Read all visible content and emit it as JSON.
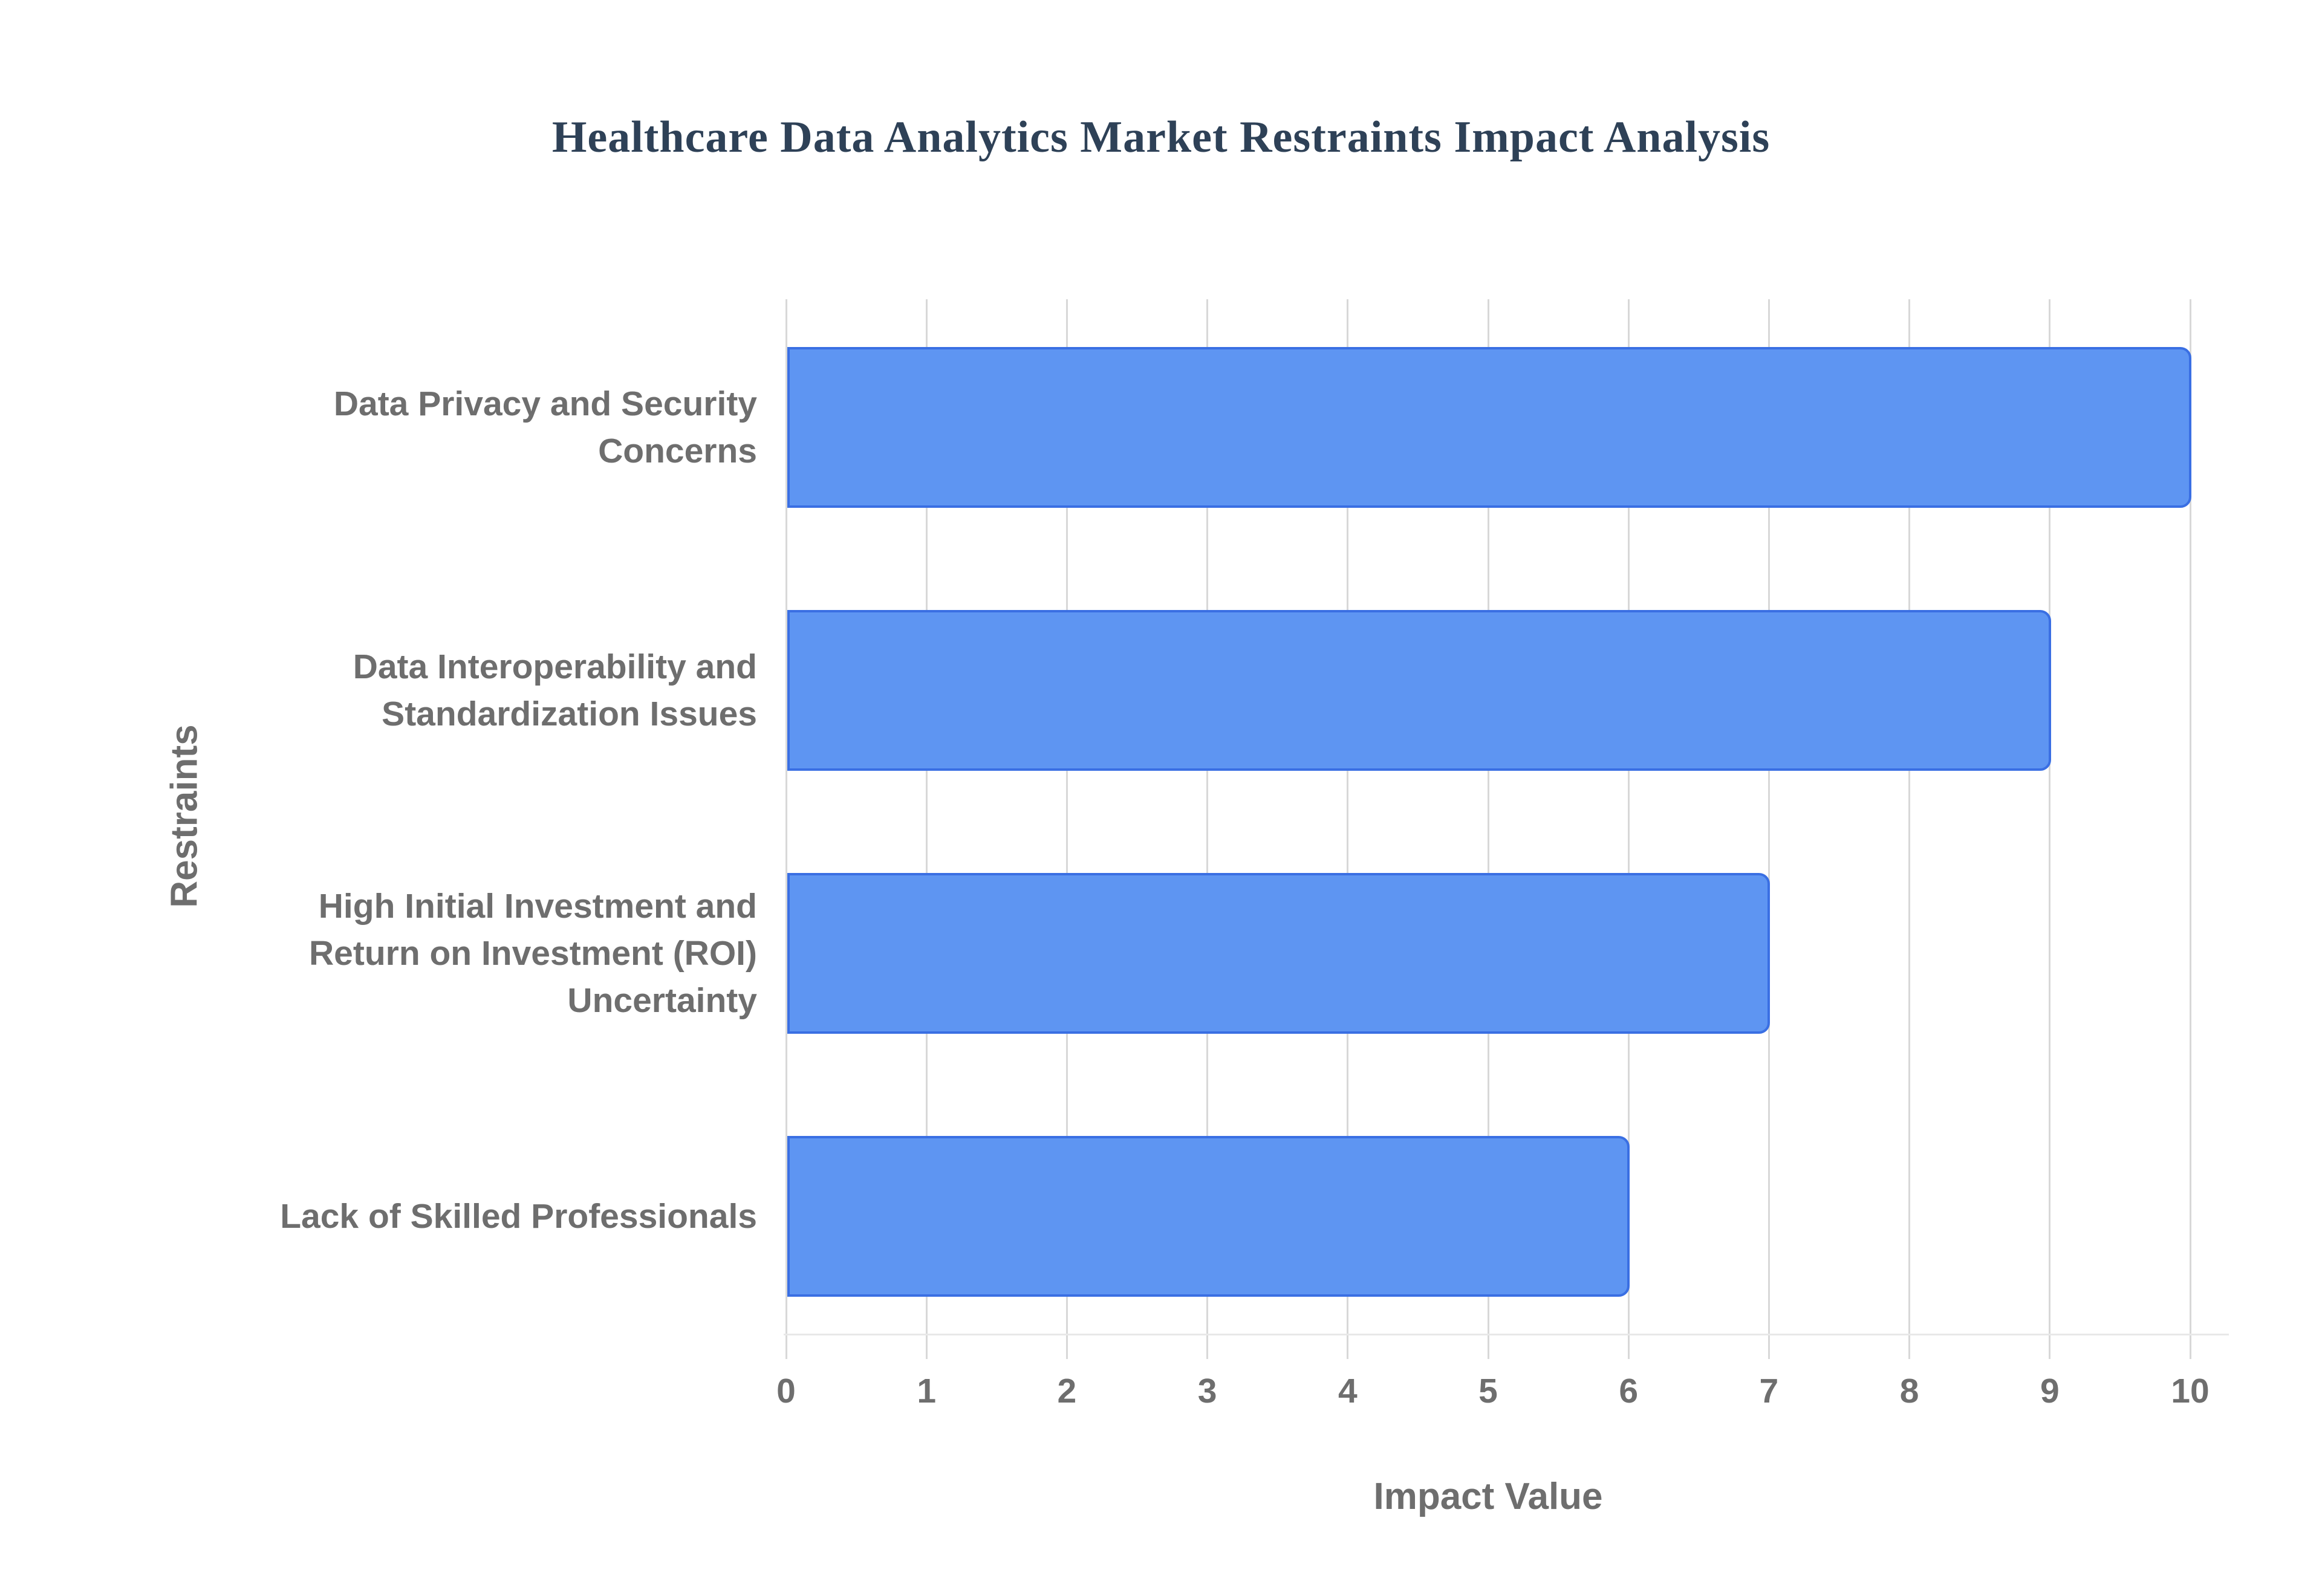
{
  "chart_data": {
    "type": "bar",
    "orientation": "horizontal",
    "title": "Healthcare Data Analytics Market Restraints Impact Analysis",
    "xlabel": "Impact Value",
    "ylabel": "Restraints",
    "categories": [
      "Data Privacy and Security Concerns",
      "Data Interoperability and Standardization Issues",
      "High Initial Investment and Return on Investment (ROI) Uncertainty",
      "Lack of Skilled Professionals"
    ],
    "category_label_lines": [
      [
        "Data Privacy and Security",
        "Concerns"
      ],
      [
        "Data Interoperability and",
        "Standardization Issues"
      ],
      [
        "High Initial Investment and",
        "Return on Investment (ROI)",
        "Uncertainty"
      ],
      [
        "Lack of Skilled Professionals"
      ]
    ],
    "values": [
      10,
      9,
      7,
      6
    ],
    "xlim": [
      0,
      10
    ],
    "xticks": [
      0,
      1,
      2,
      3,
      4,
      5,
      6,
      7,
      8,
      9,
      10
    ],
    "grid": true,
    "legend": "none",
    "colors": {
      "bar_fill": "#5e95f2",
      "bar_border": "#3a6fe3",
      "title_text": "#2e4157",
      "axis_text": "#6e6e6e",
      "gridline": "#d8d8d8",
      "axis_line": "#e8e8e8",
      "background": "#ffffff"
    }
  }
}
